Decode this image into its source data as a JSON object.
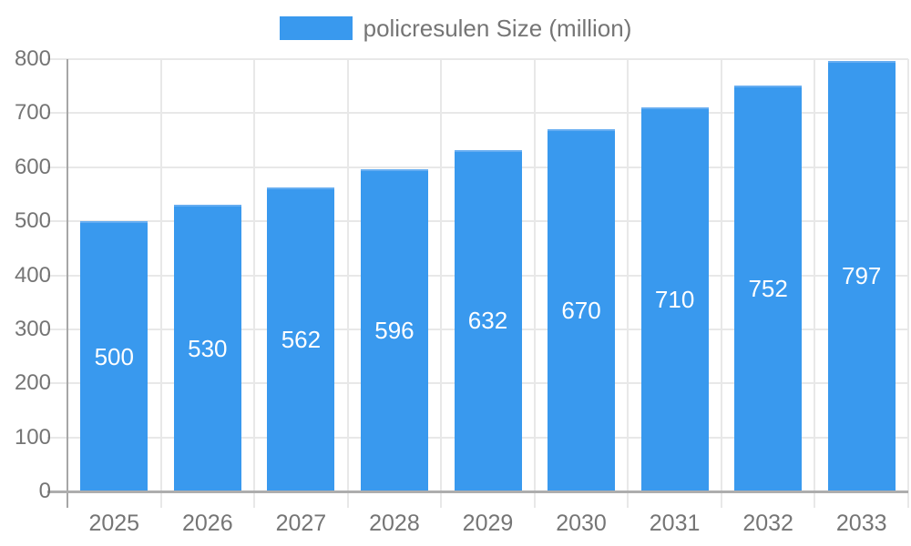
{
  "legend": {
    "label": "policresulen Size (million)"
  },
  "chart_data": {
    "type": "bar",
    "title": "",
    "categories": [
      "2025",
      "2026",
      "2027",
      "2028",
      "2029",
      "2030",
      "2031",
      "2032",
      "2033"
    ],
    "series": [
      {
        "name": "policresulen Size (million)",
        "values": [
          500,
          530,
          562,
          596,
          632,
          670,
          710,
          752,
          797
        ]
      }
    ],
    "value_labels": [
      "500",
      "530",
      "562",
      "596",
      "632",
      "670",
      "710",
      "752",
      "797"
    ],
    "xlabel": "",
    "ylabel": "",
    "ylim": [
      0,
      800
    ],
    "yticks": [
      0,
      100,
      200,
      300,
      400,
      500,
      600,
      700,
      800
    ],
    "grid": true,
    "legend_position": "top-center",
    "colors": {
      "bar": "#3999EE",
      "bar_top_edge": "#66ADF1",
      "bar_value_text": "#FFFFFF",
      "axis_text": "#757575",
      "legend_text": "#757575",
      "gridline": "#E8E8E8",
      "y_axis_line": "#A6A6A6",
      "x_baseline": "#ADADAD",
      "background": "#FFFFFF"
    }
  }
}
